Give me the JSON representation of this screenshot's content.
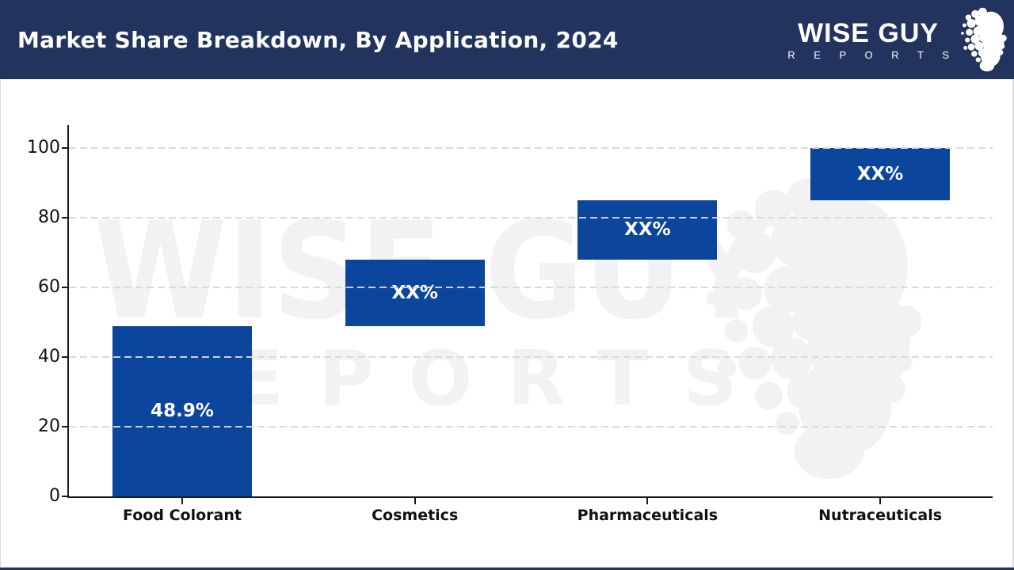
{
  "header": {
    "title": "Market Share Breakdown, By Application, 2024",
    "bg_color": "#22345e",
    "logo": {
      "line1": "WISE GUY",
      "line2": "R E P O R T S"
    }
  },
  "watermark": {
    "line1": "WISE GUY",
    "line2": "REPORTS"
  },
  "chart_data": {
    "type": "bar",
    "subtype": "waterfall",
    "title": "Market Share Breakdown, By Application, 2024",
    "categories": [
      "Food Colorant",
      "Cosmetics",
      "Pharmaceuticals",
      "Nutraceuticals"
    ],
    "series": [
      {
        "name": "Market share by application (%)",
        "segments": [
          {
            "category": "Food Colorant",
            "start": 0,
            "end": 48.9,
            "label": "48.9%"
          },
          {
            "category": "Cosmetics",
            "start": 48.9,
            "end": 68,
            "label": "XX%"
          },
          {
            "category": "Pharmaceuticals",
            "start": 68,
            "end": 85,
            "label": "XX%"
          },
          {
            "category": "Nutraceuticals",
            "start": 85,
            "end": 100,
            "label": "XX%"
          }
        ]
      }
    ],
    "ylim": [
      0,
      100
    ],
    "yticks": [
      0,
      20,
      40,
      60,
      80,
      100
    ],
    "xlabel": "",
    "ylabel": "",
    "grid": "horizontal-dashed",
    "legend": "none",
    "bar_color": "#0c459c",
    "bar_label_color": "#ffffff"
  },
  "colors": {
    "header_navy": "#22345e",
    "bar_blue": "#0c459c",
    "gridline_gray": "#d8d8d8",
    "watermark_gray": "#f2f2f4",
    "axis_black": "#1a1a1a"
  }
}
